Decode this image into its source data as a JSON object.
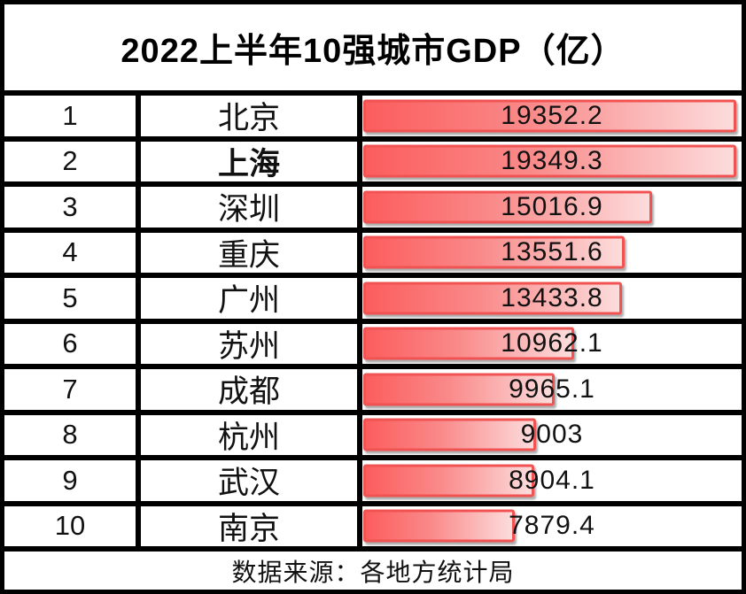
{
  "title": "2022上半年10强城市GDP（亿）",
  "footer": {
    "source_text": "数据来源：各地方统计局"
  },
  "colors": {
    "table_border": "#000000",
    "cell_background": "#ffffff",
    "bar_border": "#f15353",
    "bar_fill_start": "#fc5d5d",
    "bar_fill_end": "#fcdcdc",
    "text": "#111111"
  },
  "chart_data": {
    "type": "bar",
    "orientation": "horizontal",
    "title": "2022上半年10强城市GDP（亿）",
    "xlabel": "",
    "ylabel": "",
    "xlim": [
      0,
      19600
    ],
    "grid": false,
    "legend": false,
    "ranks": [
      "1",
      "2",
      "3",
      "4",
      "5",
      "6",
      "7",
      "8",
      "9",
      "10"
    ],
    "categories": [
      "北京",
      "上海",
      "深圳",
      "重庆",
      "广州",
      "苏州",
      "成都",
      "杭州",
      "武汉",
      "南京"
    ],
    "values": [
      19352.2,
      19349.3,
      15016.9,
      13551.6,
      13433.8,
      10962.1,
      9965.1,
      9003,
      8904.1,
      7879.4
    ],
    "value_labels": [
      "19352.2",
      "19349.3",
      "15016.9",
      "13551.6",
      "13433.8",
      "10962.1",
      "9965.1",
      "9003",
      "8904.1",
      "7879.4"
    ],
    "bold_categories": [
      "上海"
    ],
    "annotations": [
      "数据来源：各地方统计局"
    ]
  }
}
